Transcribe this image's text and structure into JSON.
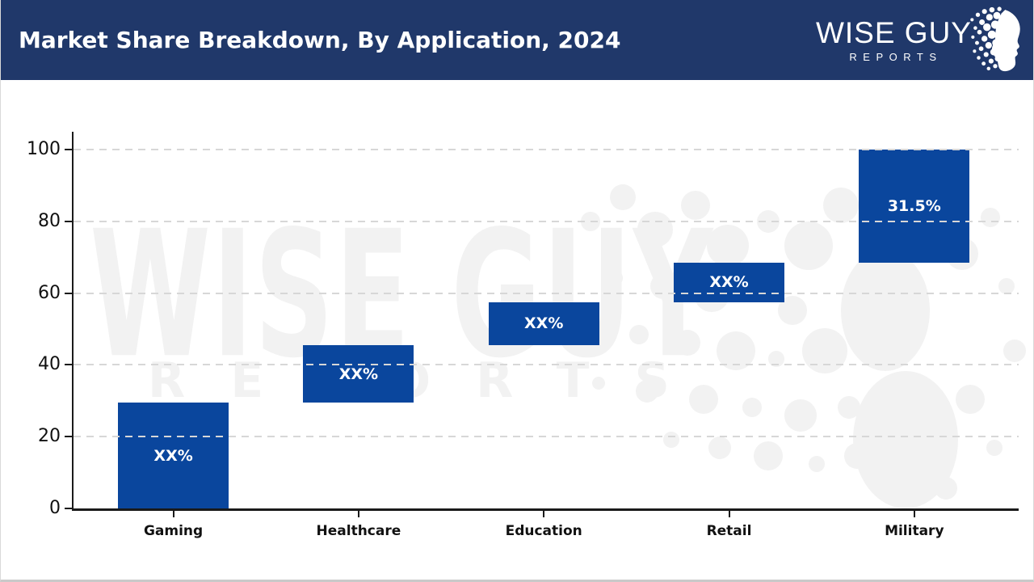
{
  "header": {
    "title": "Market Share Breakdown, By Application, 2024",
    "logo": {
      "line1": "WISE GUY",
      "line2": "REPORTS"
    }
  },
  "watermark": {
    "line1": "WISE GUY",
    "line2": "REPORTS"
  },
  "chart_data": {
    "type": "bar",
    "subtype": "waterfall",
    "title": "Market Share Breakdown, By Application, 2024",
    "categories": [
      "Gaming",
      "Healthcare",
      "Education",
      "Retail",
      "Military"
    ],
    "segments": [
      {
        "category": "Gaming",
        "start": 0,
        "end": 29.5,
        "label": "XX%"
      },
      {
        "category": "Healthcare",
        "start": 29.5,
        "end": 45.5,
        "label": "XX%"
      },
      {
        "category": "Education",
        "start": 45.5,
        "end": 57.5,
        "label": "XX%"
      },
      {
        "category": "Retail",
        "start": 57.5,
        "end": 68.5,
        "label": "XX%"
      },
      {
        "category": "Military",
        "start": 68.5,
        "end": 100,
        "label": "31.5%"
      }
    ],
    "y_ticks": [
      0,
      20,
      40,
      60,
      80,
      100
    ],
    "ylim": [
      0,
      105
    ],
    "xlabel": "",
    "ylabel": "",
    "grid": "horizontal-dashed",
    "legend": "none",
    "colors": {
      "bar": "#0a469d",
      "bar_label": "#ffffff",
      "grid_line": "#d7d7d7",
      "axis": "#1a1a1a",
      "header_bg": "#20386a",
      "header_text": "#ffffff",
      "watermark": "#f2f2f2"
    }
  }
}
